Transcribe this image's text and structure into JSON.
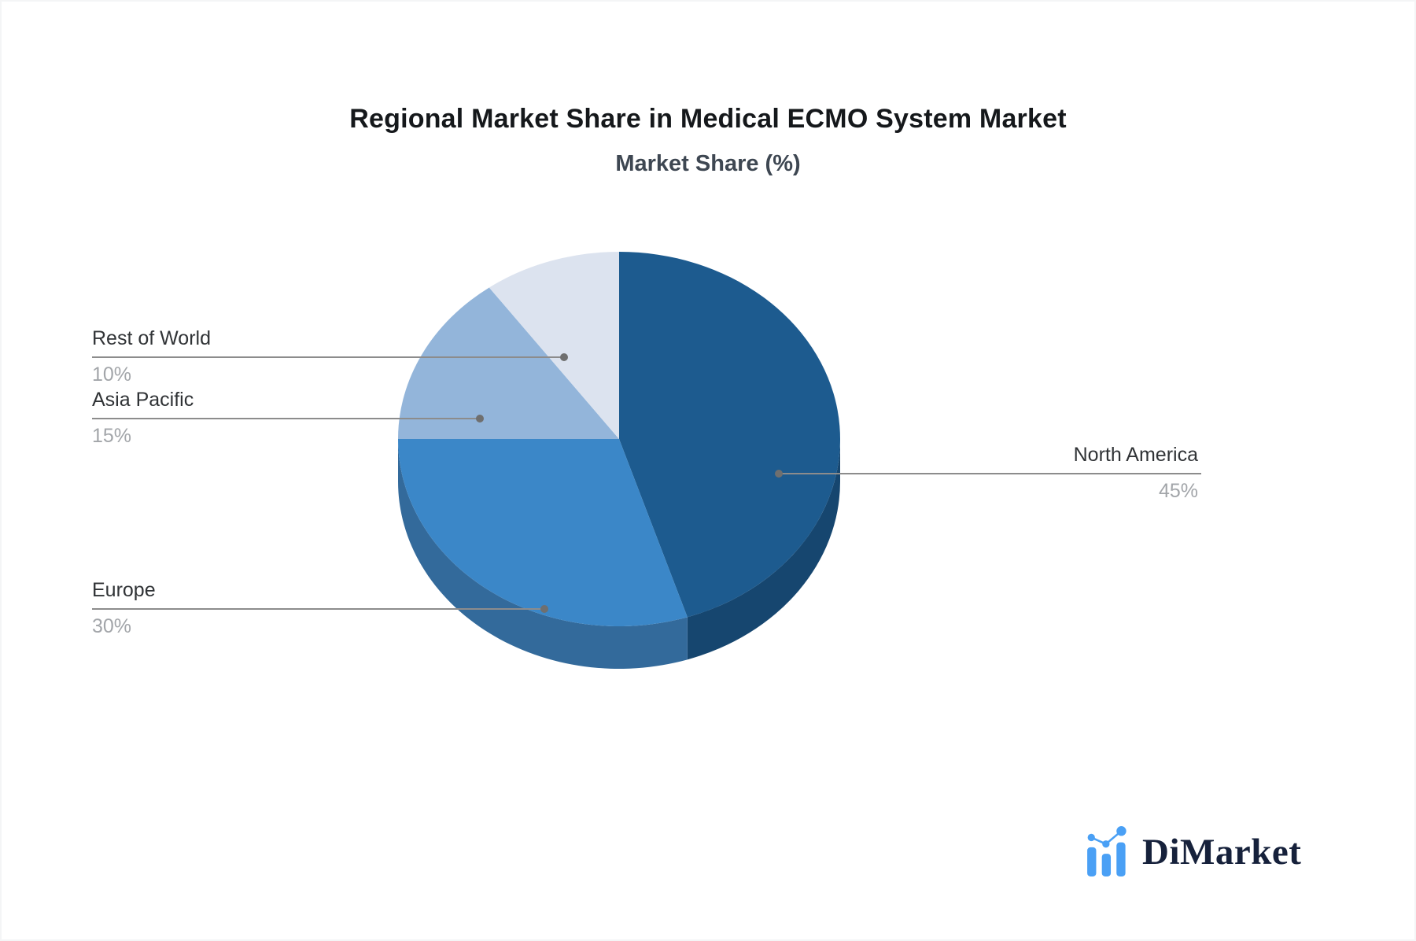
{
  "chart_data": {
    "type": "pie",
    "style": "3d",
    "title": "Regional Market Share in Medical ECMO System Market",
    "subtitle": "Market Share (%)",
    "categories": [
      "North America",
      "Europe",
      "Asia Pacific",
      "Rest of World"
    ],
    "values": [
      45,
      30,
      15,
      10
    ],
    "value_labels": [
      "45%",
      "30%",
      "15%",
      "10%"
    ],
    "slice_colors": [
      "#1d5b8f",
      "#3b87c8",
      "#93b5da",
      "#dce3ef"
    ],
    "slice_side_colors": [
      "#16466f",
      "#336a9b",
      "#7ea3c9",
      "#c9d3e3"
    ],
    "start_angle_deg": 0,
    "direction": "clockwise",
    "legend_position": "none",
    "connector_color": "#8c8c8c",
    "connector_dot_color": "#6f6f6f"
  },
  "branding": {
    "logo_text": "DiMarket",
    "logo_icon": "bar-line-chart-icon",
    "logo_icon_color": "#4aa0f5",
    "logo_text_color": "#16213b"
  }
}
